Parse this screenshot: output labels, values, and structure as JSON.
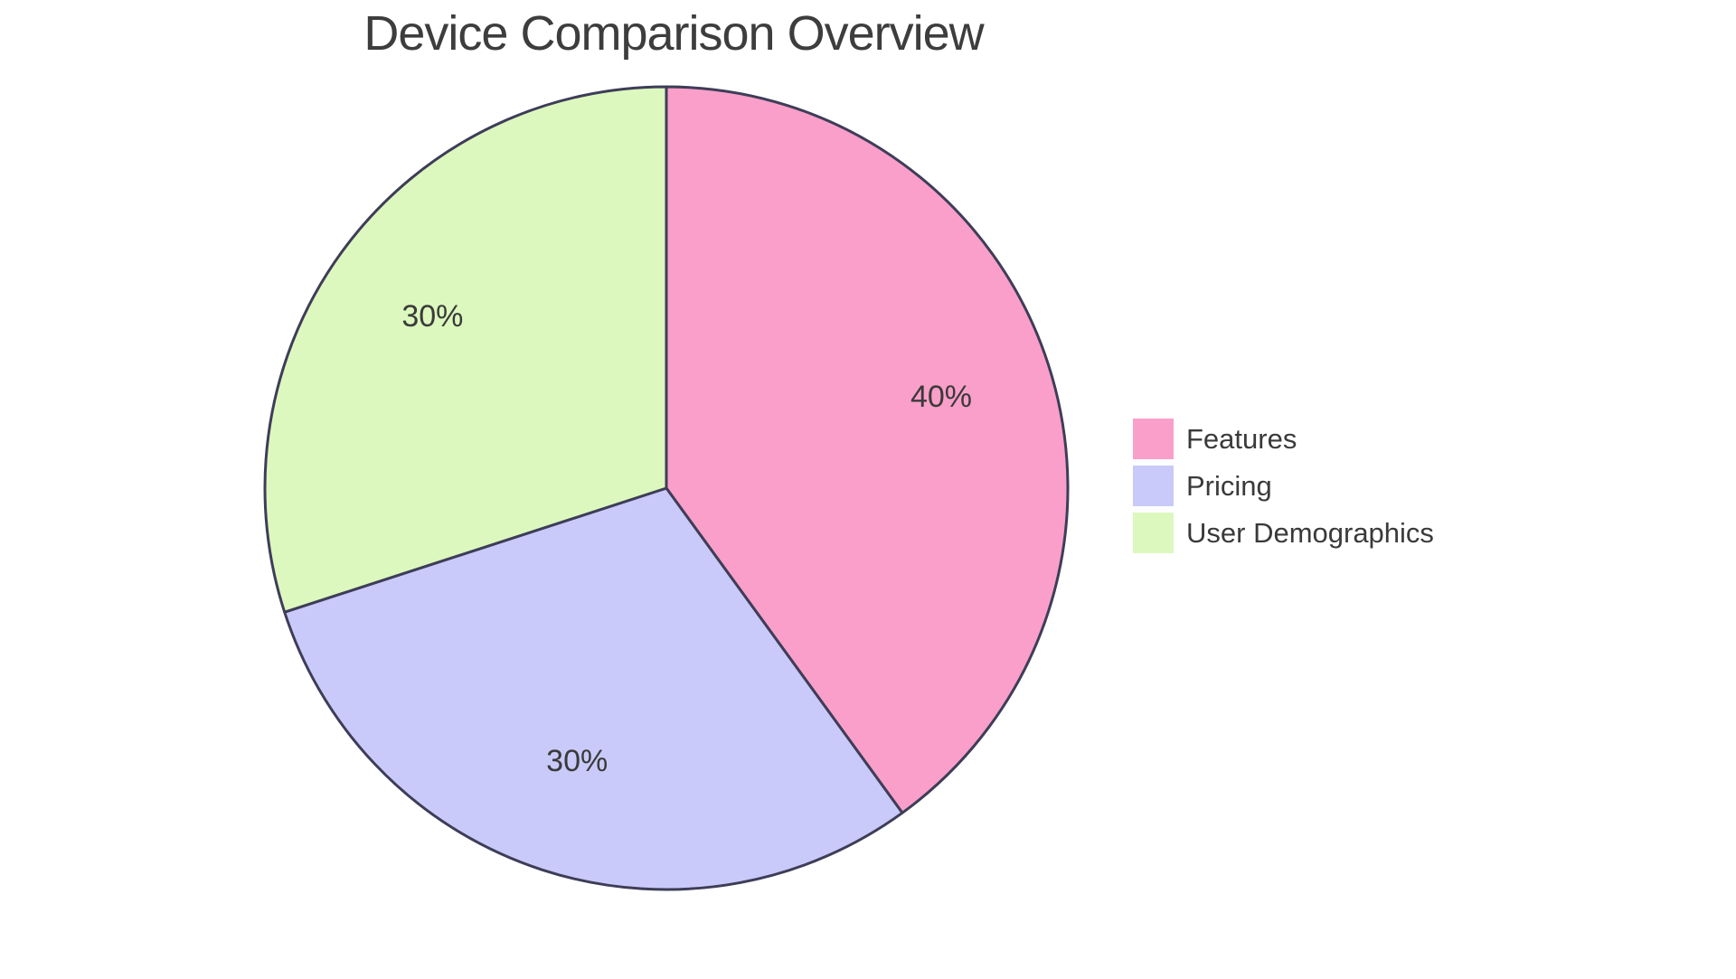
{
  "chart_data": {
    "type": "pie",
    "title": "Device Comparison Overview",
    "slices": [
      {
        "label": "Features",
        "value": 40,
        "percent_label": "40%",
        "color": "#FA9FC9"
      },
      {
        "label": "Pricing",
        "value": 30,
        "percent_label": "30%",
        "color": "#C9CAF9"
      },
      {
        "label": "User Demographics",
        "value": 30,
        "percent_label": "30%",
        "color": "#DCF8BE"
      }
    ],
    "start_angle": "12-oclock",
    "direction": "clockwise",
    "slice_border_color": "#3E3D58",
    "percent_label_color": "#3A3A3A",
    "title_color": "#3D3D3D",
    "legend": {
      "position": "right",
      "text_color": "#3A3A3A"
    }
  }
}
